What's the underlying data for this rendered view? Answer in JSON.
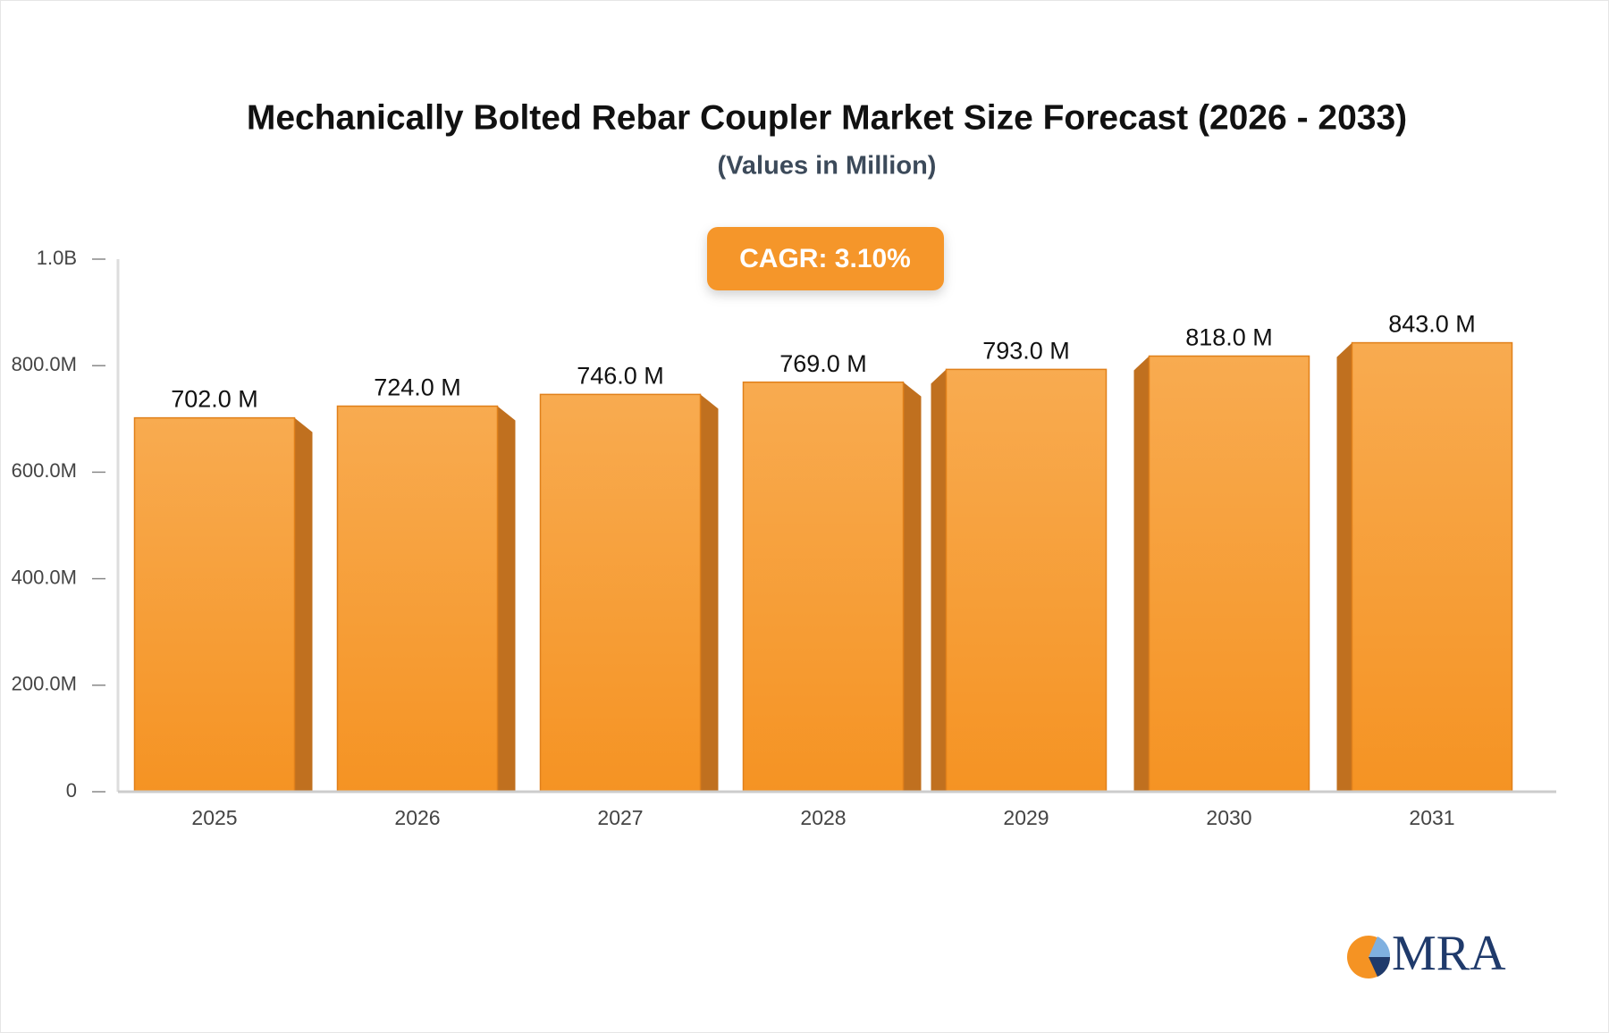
{
  "chart_data": {
    "type": "bar",
    "title": "Mechanically Bolted Rebar Coupler Market Size Forecast (2026 - 2033)",
    "subtitle": "(Values in Million)",
    "annotation": "CAGR: 3.10%",
    "categories": [
      "2025",
      "2026",
      "2027",
      "2028",
      "2029",
      "2030",
      "2031"
    ],
    "values": [
      702,
      724,
      746,
      769,
      793,
      818,
      843
    ],
    "value_labels": [
      "702.0 M",
      "724.0 M",
      "746.0 M",
      "769.0 M",
      "793.0 M",
      "818.0 M",
      "843.0 M"
    ],
    "color": "#f59a30",
    "ylim": [
      0,
      1000
    ],
    "yticks": [
      0,
      {
        "value": 200,
        "label": "200.0M"
      },
      {
        "value": 400,
        "label": "400.0M"
      },
      {
        "value": 600,
        "label": "600.0M"
      },
      {
        "value": 800,
        "label": "800.0M"
      },
      {
        "value": 1000,
        "label": "1.0B"
      }
    ],
    "grid": false
  },
  "logo": "MRA"
}
